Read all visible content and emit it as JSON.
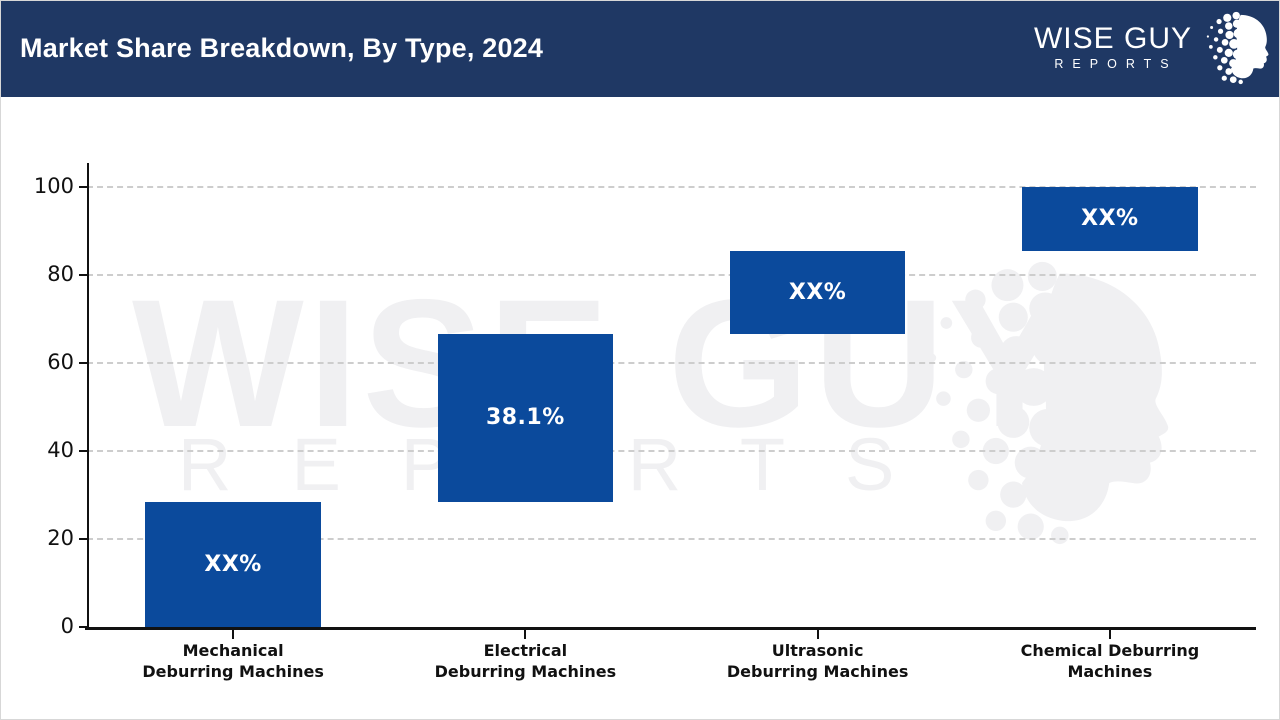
{
  "header": {
    "title": "Market Share Breakdown, By Type, 2024",
    "logo": {
      "line1": "WISE GUY",
      "line2": "REPORTS"
    }
  },
  "watermark": {
    "line1": "WISE GUY",
    "line2": "REPORTS"
  },
  "chart_data": {
    "type": "bar",
    "subtype": "waterfall-floating-bars",
    "title": "Market Share Breakdown, By Type, 2024",
    "categories": [
      "Mechanical\nDeburring Machines",
      "Electrical\nDeburring Machines",
      "Ultrasonic\nDeburring Machines",
      "Chemical Deburring\nMachines"
    ],
    "segments": [
      {
        "category": "Mechanical Deburring Machines",
        "start": 0,
        "end": 28.5,
        "height": 28.5,
        "label": "XX%"
      },
      {
        "category": "Electrical Deburring Machines",
        "start": 28.5,
        "end": 66.6,
        "height": 38.1,
        "label": "38.1%"
      },
      {
        "category": "Ultrasonic Deburring Machines",
        "start": 66.6,
        "end": 85.6,
        "height": 19.0,
        "label": "XX%"
      },
      {
        "category": "Chemical Deburring Machines",
        "start": 85.6,
        "end": 100,
        "height": 14.4,
        "label": "XX%"
      }
    ],
    "yticks": [
      0,
      20,
      40,
      60,
      80,
      100
    ],
    "ylim": [
      0,
      105.5
    ],
    "xlabel": "",
    "ylabel": "",
    "grid": "horizontal-dashed",
    "legend": "none",
    "colors": {
      "bar": "#0b4a9c",
      "bar_label": "#ffffff",
      "header_bg": "#1f3864",
      "gridline": "#cdcdcd",
      "axis": "#111111",
      "watermark": "#f0f0f2"
    }
  }
}
